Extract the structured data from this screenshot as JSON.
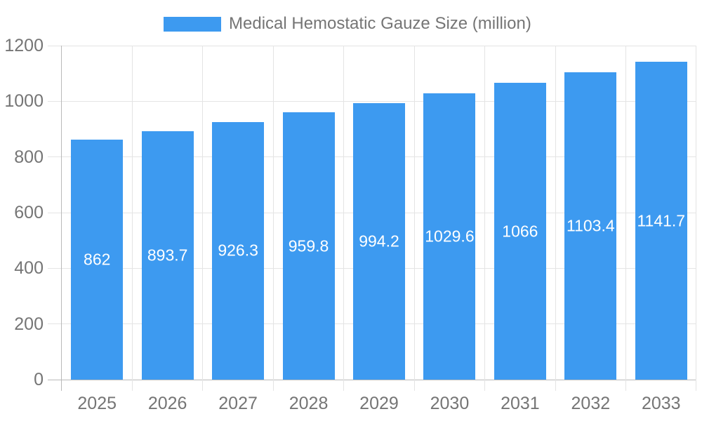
{
  "legend": {
    "label": "Medical Hemostatic Gauze Size (million)"
  },
  "colors": {
    "bar": "#3D9AF0",
    "axis_text": "#757575",
    "grid_light": "#e4e4e4",
    "axis_zero_line": "#b9b9b9",
    "value_label": "#ffffff",
    "background": "#ffffff"
  },
  "chart_data": {
    "type": "bar",
    "title": "Medical Hemostatic Gauze Size (million)",
    "series_name": "Medical Hemostatic Gauze Size (million)",
    "categories": [
      "2025",
      "2026",
      "2027",
      "2028",
      "2029",
      "2030",
      "2031",
      "2032",
      "2033"
    ],
    "values": [
      862,
      893.7,
      926.3,
      959.8,
      994.2,
      1029.6,
      1066,
      1103.4,
      1141.7
    ],
    "value_labels": [
      "862",
      "893.7",
      "926.3",
      "959.8",
      "994.2",
      "1029.6",
      "1066",
      "1103.4",
      "1141.7"
    ],
    "xlabel": "",
    "ylabel": "",
    "ylim": [
      0,
      1200
    ],
    "yticks": [
      0,
      200,
      400,
      600,
      800,
      1000,
      1200
    ],
    "grid": true,
    "legend_position": "top",
    "value_label_position": "inside-center"
  }
}
